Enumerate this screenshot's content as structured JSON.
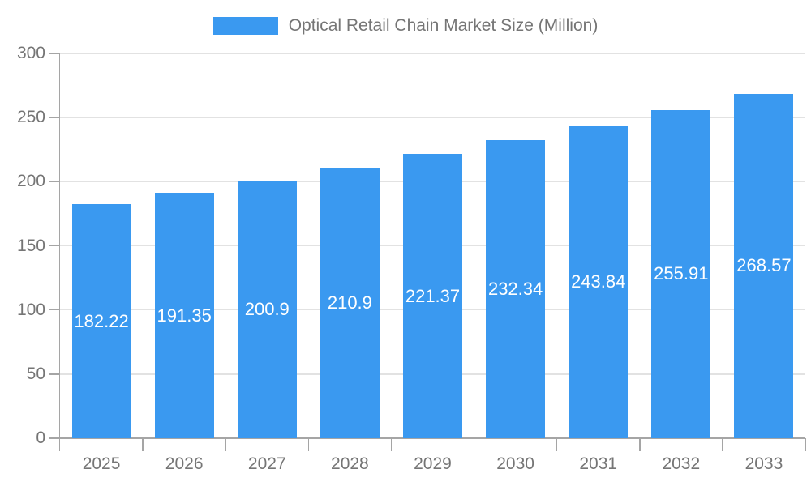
{
  "legend": {
    "label": "Optical Retail Chain Market Size (Million)"
  },
  "chart_data": {
    "type": "bar",
    "title": "Optical Retail Chain Market Size (Million)",
    "series_name": "Optical Retail Chain Market Size (Million)",
    "categories": [
      "2025",
      "2026",
      "2027",
      "2028",
      "2029",
      "2030",
      "2031",
      "2032",
      "2033"
    ],
    "values": [
      182.22,
      191.35,
      200.9,
      210.9,
      221.37,
      232.34,
      243.84,
      255.91,
      268.57
    ],
    "value_labels": [
      "182.22",
      "191.35",
      "200.9",
      "210.9",
      "221.37",
      "232.34",
      "243.84",
      "255.91",
      "268.57"
    ],
    "xlabel": "",
    "ylabel": "",
    "ylim": [
      0,
      300
    ],
    "yticks": [
      0,
      50,
      100,
      150,
      200,
      250,
      300
    ],
    "grid": true,
    "legend_position": "top"
  },
  "colors": {
    "bar": "#3a99f0",
    "axis": "#a5a5a5",
    "grid": "#e2e2e2",
    "text": "#757575",
    "value_text": "#ffffff"
  }
}
